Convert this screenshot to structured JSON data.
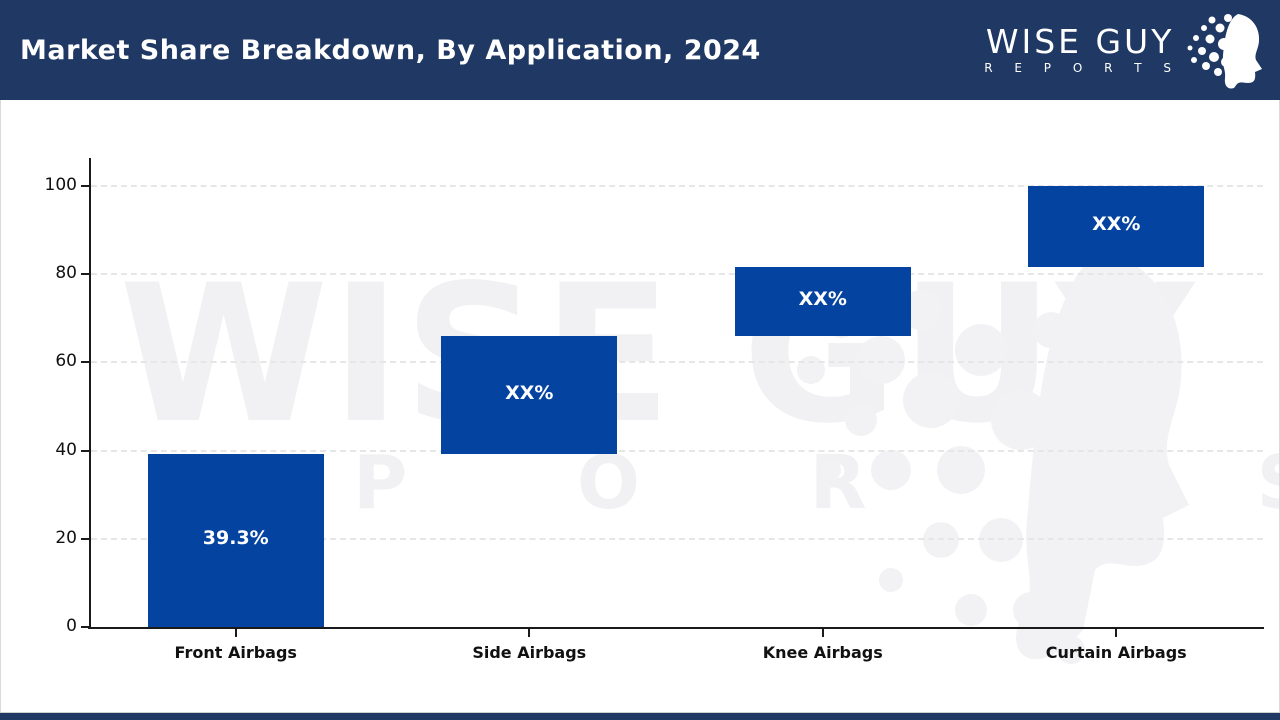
{
  "header": {
    "title": "Market Share Breakdown, By Application, 2024",
    "logo": {
      "line1": "WISE GUY",
      "line2": "R E P O R T S"
    }
  },
  "watermark": {
    "line1": "WISE GUY",
    "line2": "P O R T S"
  },
  "chart_data": {
    "type": "bar",
    "subtype": "waterfall",
    "title": "Market Share Breakdown, By Application, 2024",
    "xlabel": "",
    "ylabel": "",
    "categories": [
      "Front Airbags",
      "Side Airbags",
      "Knee Airbags",
      "Curtain Airbags"
    ],
    "segments": [
      {
        "category": "Front Airbags",
        "start": 0,
        "end": 39.3,
        "value": 39.3,
        "label": "39.3%"
      },
      {
        "category": "Side Airbags",
        "start": 39.3,
        "end": 66.0,
        "value": 26.7,
        "label": "XX%"
      },
      {
        "category": "Knee Airbags",
        "start": 66.0,
        "end": 81.7,
        "value": 15.7,
        "label": "XX%"
      },
      {
        "category": "Curtain Airbags",
        "start": 81.7,
        "end": 100.0,
        "value": 18.3,
        "label": "XX%"
      }
    ],
    "yticks": [
      0,
      20,
      40,
      60,
      80,
      100
    ],
    "ylim": [
      0,
      106
    ],
    "grid": "horizontal-dashed",
    "legend": "none",
    "bar_color": "#0443a0",
    "bar_label_color": "#ffffff"
  },
  "colors": {
    "header_bg": "#1f3864",
    "footer_bg": "#1f3864",
    "bar": "#0443a0",
    "grid": "#e6e6e6",
    "axis": "#1a1a1a",
    "watermark": "#f1f1f3"
  }
}
